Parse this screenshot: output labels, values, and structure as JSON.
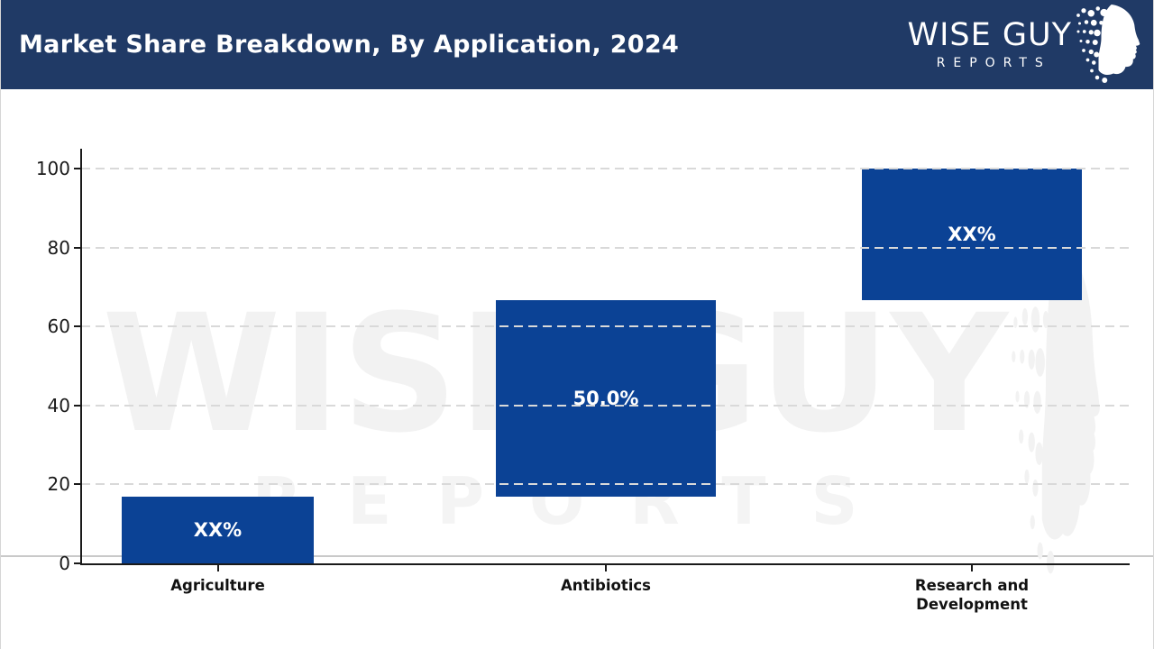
{
  "header": {
    "title": "Market Share Breakdown, By Application, 2024",
    "logo_name": "WISE GUY",
    "logo_sub": "REPORTS",
    "bg_color": "#203a66"
  },
  "watermark": {
    "name": "WISE GUY",
    "sub": "REPORTS"
  },
  "chart_data": {
    "type": "bar",
    "variant": "waterfall",
    "title": "Market Share Breakdown, By Application, 2024",
    "categories": [
      "Agriculture",
      "Antibiotics",
      "Research and Development"
    ],
    "segments": [
      {
        "category": "Agriculture",
        "start": 0,
        "end": 16.7,
        "value": 16.7,
        "label": "XX%"
      },
      {
        "category": "Antibiotics",
        "start": 16.7,
        "end": 66.7,
        "value": 50.0,
        "label": "50.0%"
      },
      {
        "category": "Research and Development",
        "start": 66.7,
        "end": 100,
        "value": 33.3,
        "label": "XX%"
      }
    ],
    "ylim": [
      0,
      100
    ],
    "yticks": [
      0,
      20,
      40,
      60,
      80,
      100
    ],
    "xlabel": "",
    "ylabel": "",
    "legend": "none",
    "grid": "horizontal-dashed",
    "colors": {
      "bar": "#0b4295",
      "grid": "#d9d9d9",
      "axis": "#1a1a1a",
      "bar_label_text": "#ffffff",
      "tick_text": "#1a1a1a",
      "header_bg": "#203a66",
      "watermark": "#f2f2f2"
    }
  }
}
